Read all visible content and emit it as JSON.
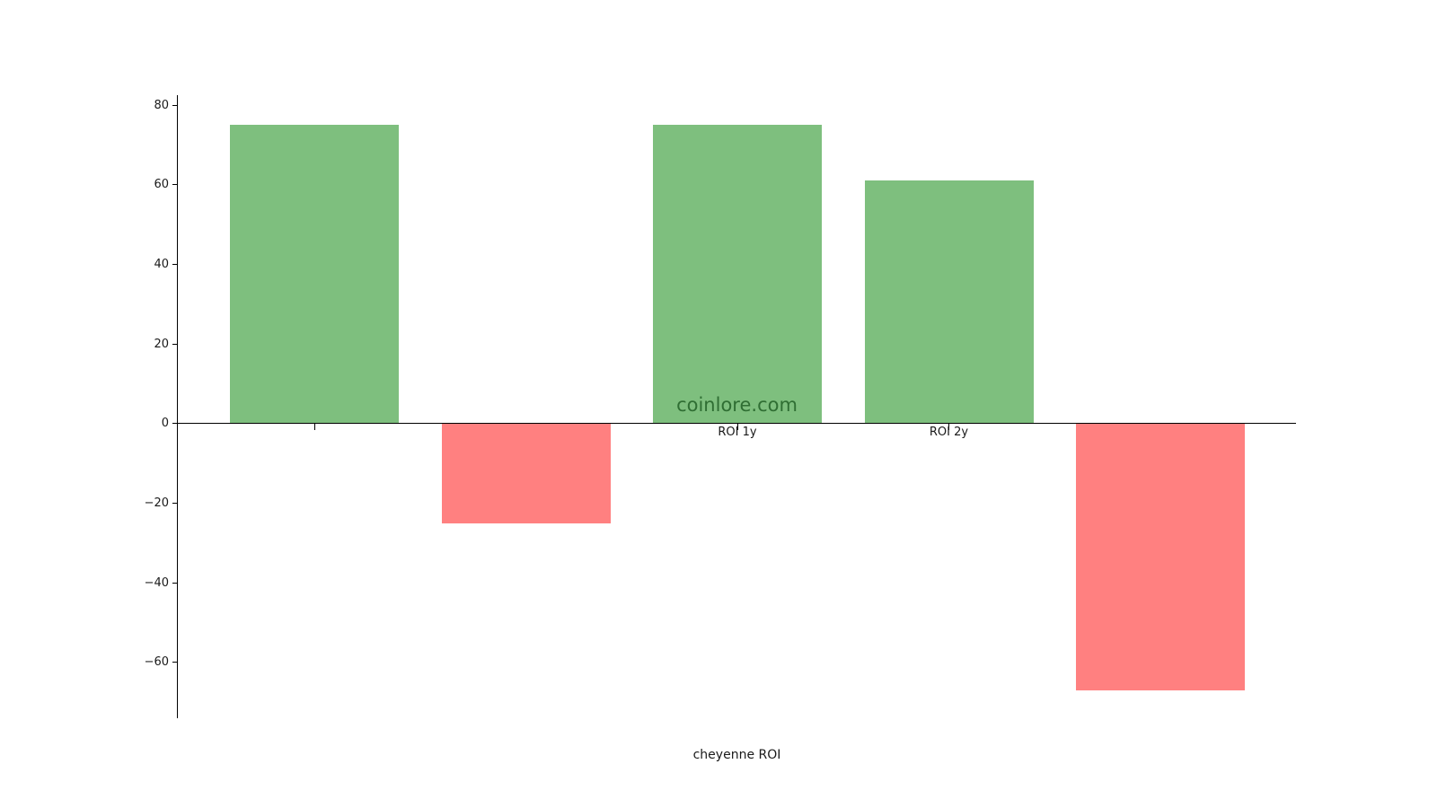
{
  "chart_data": {
    "type": "bar",
    "categories": [
      "",
      "",
      "ROI 1y",
      "ROI 2y",
      ""
    ],
    "values": [
      75,
      -25,
      75,
      61,
      -67
    ],
    "title": "",
    "xlabel": "cheyenne ROI",
    "ylabel": "",
    "ylim": [
      -74,
      82.5
    ],
    "yticks": [
      80,
      60,
      40,
      20,
      0,
      -20,
      -40,
      -60
    ],
    "grid": false,
    "legend": null,
    "watermark": "coinlore.com",
    "colors": {
      "positive_bar": "#7ebf7e",
      "negative_bar": "#ff8080",
      "axis": "#000000",
      "tick_text": "#1a1a1a",
      "watermark_text": "#2f6e33"
    }
  }
}
